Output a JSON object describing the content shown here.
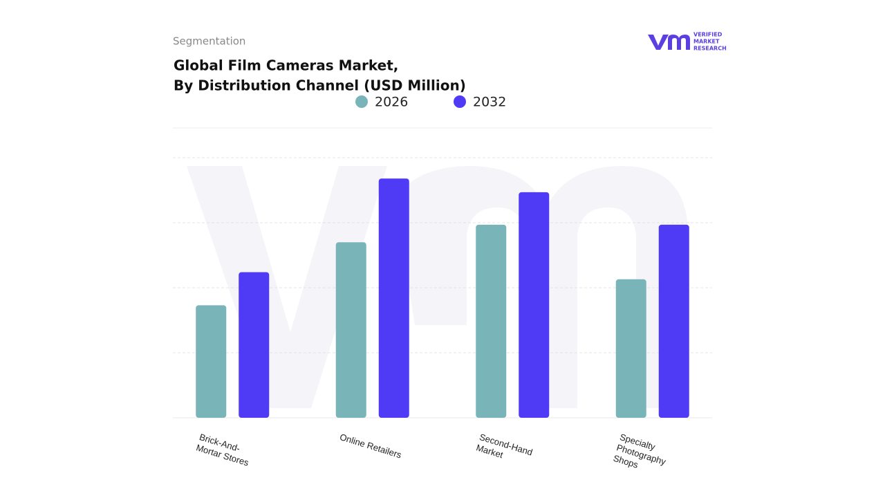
{
  "chart_data": {
    "type": "bar",
    "section": "Segmentation",
    "title": [
      "Global Film Cameras Market,",
      "By Distribution Channel (USD Million)"
    ],
    "categories": [
      "Brick-And-Mortar Stores",
      "Online Retailers",
      "Second-Hand Market",
      "Specialty Photography Shops"
    ],
    "series": [
      {
        "name": "2026",
        "color": "#79b5b8",
        "values": [
          1.73,
          2.7,
          2.97,
          2.13
        ]
      },
      {
        "name": "2032",
        "color": "#4f3af5",
        "values": [
          2.24,
          3.68,
          3.47,
          2.97
        ]
      }
    ],
    "ylim": [
      0,
      4.5
    ],
    "yticks": [
      1,
      2,
      3,
      4
    ],
    "grid": true,
    "tick_labels": false,
    "legend": "top"
  },
  "logo": {
    "lines": [
      "VERIFIED",
      "MARKET",
      "RESEARCH"
    ]
  }
}
